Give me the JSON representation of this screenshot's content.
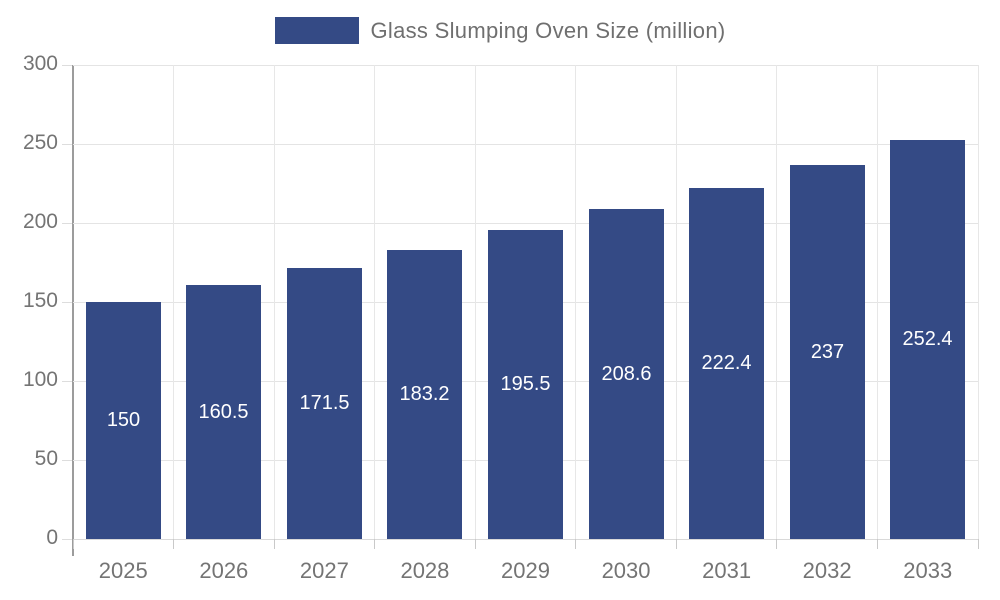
{
  "colors": {
    "bar": "#344a85",
    "bar_label": "#ffffff",
    "axis_text": "#747474",
    "legend_text": "#6f6f6f",
    "gridline": "#e4e4e4",
    "axis_line": "#9c9c9c",
    "background": "#ffffff"
  },
  "legend": {
    "label": "Glass Slumping Oven Size (million)"
  },
  "chart_data": {
    "type": "bar",
    "title": "Glass Slumping Oven Size (million)",
    "categories": [
      "2025",
      "2026",
      "2027",
      "2028",
      "2029",
      "2030",
      "2031",
      "2032",
      "2033"
    ],
    "values": [
      150,
      160.5,
      171.5,
      183.2,
      195.5,
      208.6,
      222.4,
      237,
      252.4
    ],
    "value_labels": [
      "150",
      "160.5",
      "171.5",
      "183.2",
      "195.5",
      "208.6",
      "222.4",
      "237",
      "252.4"
    ],
    "xlabel": "",
    "ylabel": "",
    "ylim": [
      0,
      300
    ],
    "yticks": [
      0,
      50,
      100,
      150,
      200,
      250,
      300
    ],
    "grid": true,
    "legend_position": "top-center",
    "bar_labels": "inside-centered"
  }
}
